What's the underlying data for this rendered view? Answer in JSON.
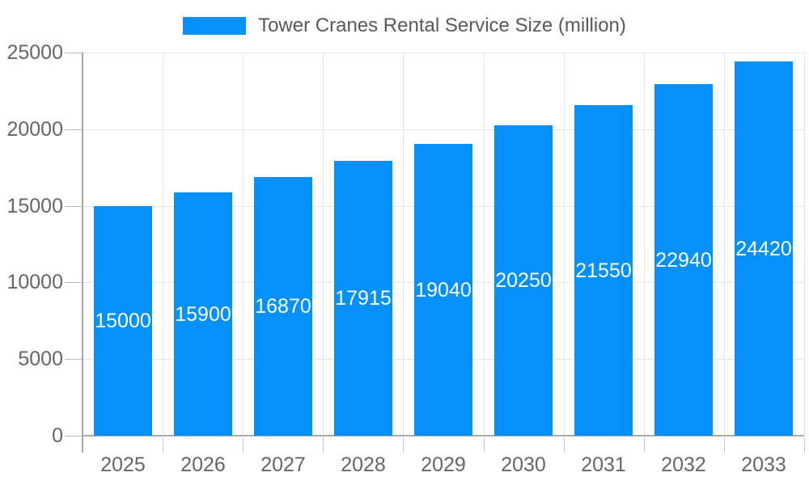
{
  "legend": {
    "label": "Tower Cranes Rental Service Size (million)",
    "position": "top"
  },
  "chart_data": {
    "type": "bar",
    "title": "Tower Cranes Rental Service Size (million)",
    "categories": [
      "2025",
      "2026",
      "2027",
      "2028",
      "2029",
      "2030",
      "2031",
      "2032",
      "2033"
    ],
    "values": [
      15000,
      15900,
      16870,
      17915,
      19040,
      20250,
      21550,
      22940,
      24420
    ],
    "xlabel": "",
    "ylabel": "",
    "ylim": [
      0,
      25000
    ],
    "yticks": [
      0,
      5000,
      10000,
      15000,
      20000,
      25000
    ],
    "grid": true,
    "legend_position": "top",
    "data_label_position": "inside-center",
    "bar_color": "#0590fa",
    "data_label_color": "#ffffff",
    "tick_label_color": "#666666",
    "legend_text_color": "#595959",
    "grid_color": "#e6e6e6",
    "axis_color": "#ababab"
  }
}
